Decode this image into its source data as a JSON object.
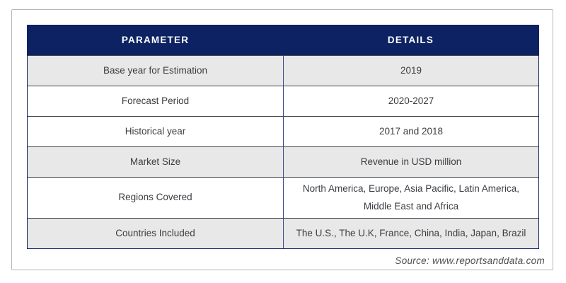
{
  "table": {
    "header": {
      "parameter": "PARAMETER",
      "details": "DETAILS"
    },
    "rows": [
      {
        "parameter": "Base year for Estimation",
        "details": "2019",
        "shaded": true,
        "tall": false
      },
      {
        "parameter": "Forecast Period",
        "details": "2020-2027",
        "shaded": false,
        "tall": false
      },
      {
        "parameter": "Historical year",
        "details": "2017 and 2018",
        "shaded": false,
        "tall": false
      },
      {
        "parameter": "Market Size",
        "details": "Revenue in USD million",
        "shaded": true,
        "tall": false
      },
      {
        "parameter": "Regions Covered",
        "details": "North America, Europe, Asia Pacific, Latin America, Middle East and Africa",
        "shaded": false,
        "tall": true
      },
      {
        "parameter": "Countries Included",
        "details": "The U.S., The  U.K, France, China, India, Japan, Brazil",
        "shaded": true,
        "tall": false
      }
    ]
  },
  "source": {
    "label": "Source: www.reportsanddata.com"
  },
  "chart_data": {
    "type": "table",
    "title": "",
    "columns": [
      "PARAMETER",
      "DETAILS"
    ],
    "rows": [
      [
        "Base year for Estimation",
        "2019"
      ],
      [
        "Forecast Period",
        "2020-2027"
      ],
      [
        "Historical year",
        "2017 and 2018"
      ],
      [
        "Market Size",
        "Revenue in USD million"
      ],
      [
        "Regions Covered",
        "North America, Europe, Asia Pacific, Latin America, Middle East and Africa"
      ],
      [
        "Countries Included",
        "The U.S., The  U.K, France, China, India, Japan, Brazil"
      ]
    ],
    "source": "Source: www.reportsanddata.com"
  },
  "colors": {
    "header_bg": "#0d2262",
    "header_text": "#ffffff",
    "shaded_row_bg": "#e8e8e8",
    "white_row_bg": "#ffffff",
    "table_border": "#0d2262",
    "row_divider": "#41454e",
    "column_divider": "#3a4a8a",
    "body_text": "#3b3d42",
    "source_text": "#4e4e50",
    "frame_border": "#b6b6b6"
  }
}
